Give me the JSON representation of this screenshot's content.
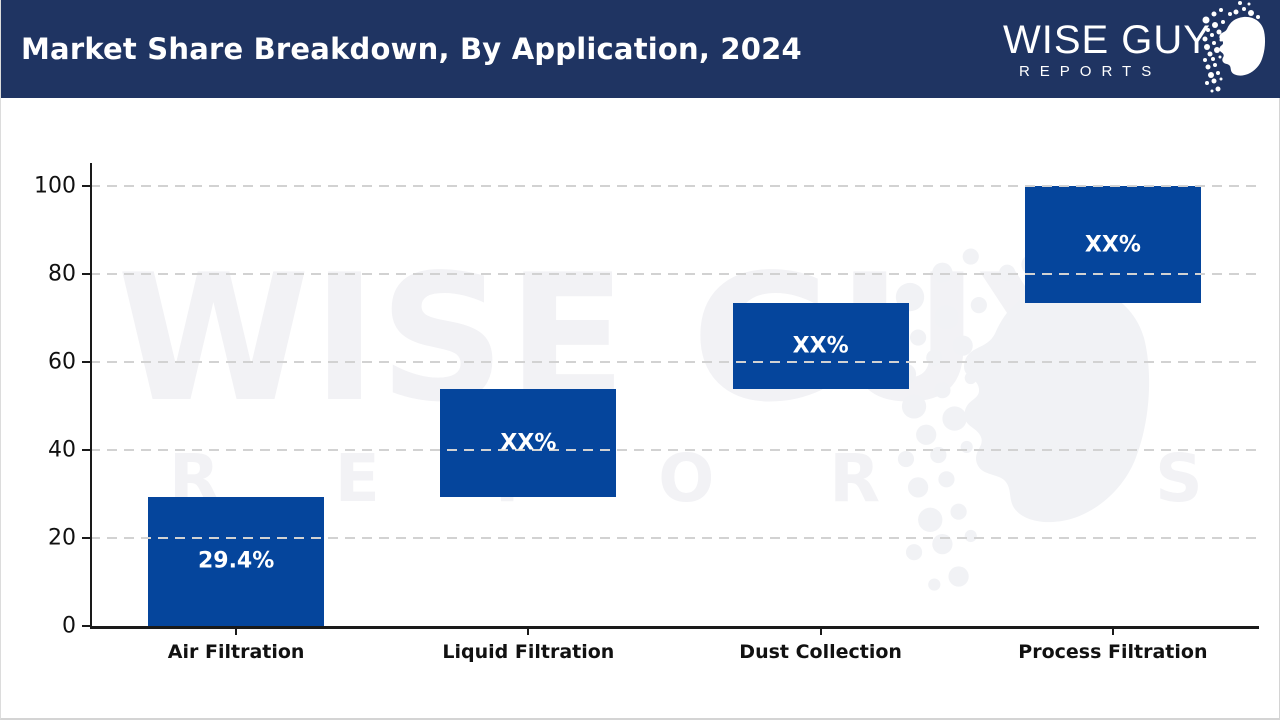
{
  "header": {
    "title": "Market Share Breakdown, By Application, 2024",
    "logo": {
      "line1": "WISE GUY",
      "line2": "REPORTS"
    }
  },
  "watermark": {
    "line1": "WISE GUY",
    "line2": "R E P O R T S"
  },
  "colors": {
    "header_bg": "#1f3462",
    "bar": "#05459c",
    "bar_label": "#ffffff",
    "gridline": "#d2d2d2",
    "axis": "#1a1a1a",
    "watermark": "#f2f2f5"
  },
  "chart_data": {
    "type": "bar",
    "variant": "waterfall",
    "title": "Market Share Breakdown, By Application, 2024",
    "categories": [
      "Air Filtration",
      "Liquid Filtration",
      "Dust Collection",
      "Process Filtration"
    ],
    "segments": [
      {
        "category": "Air Filtration",
        "start": 0,
        "end": 29.4,
        "height": 29.4,
        "label": "29.4%"
      },
      {
        "category": "Liquid Filtration",
        "start": 29.4,
        "end": 53.8,
        "height": 24.4,
        "label": "XX%"
      },
      {
        "category": "Dust Collection",
        "start": 53.8,
        "end": 73.4,
        "height": 19.6,
        "label": "XX%"
      },
      {
        "category": "Process Filtration",
        "start": 73.4,
        "end": 100,
        "height": 26.6,
        "label": "XX%"
      }
    ],
    "xlabel": "",
    "ylabel": "",
    "ylim": [
      0,
      100
    ],
    "yticks": [
      0,
      20,
      40,
      60,
      80,
      100
    ],
    "grid": "horizontal-dashed-over-bars",
    "legend": "none"
  }
}
